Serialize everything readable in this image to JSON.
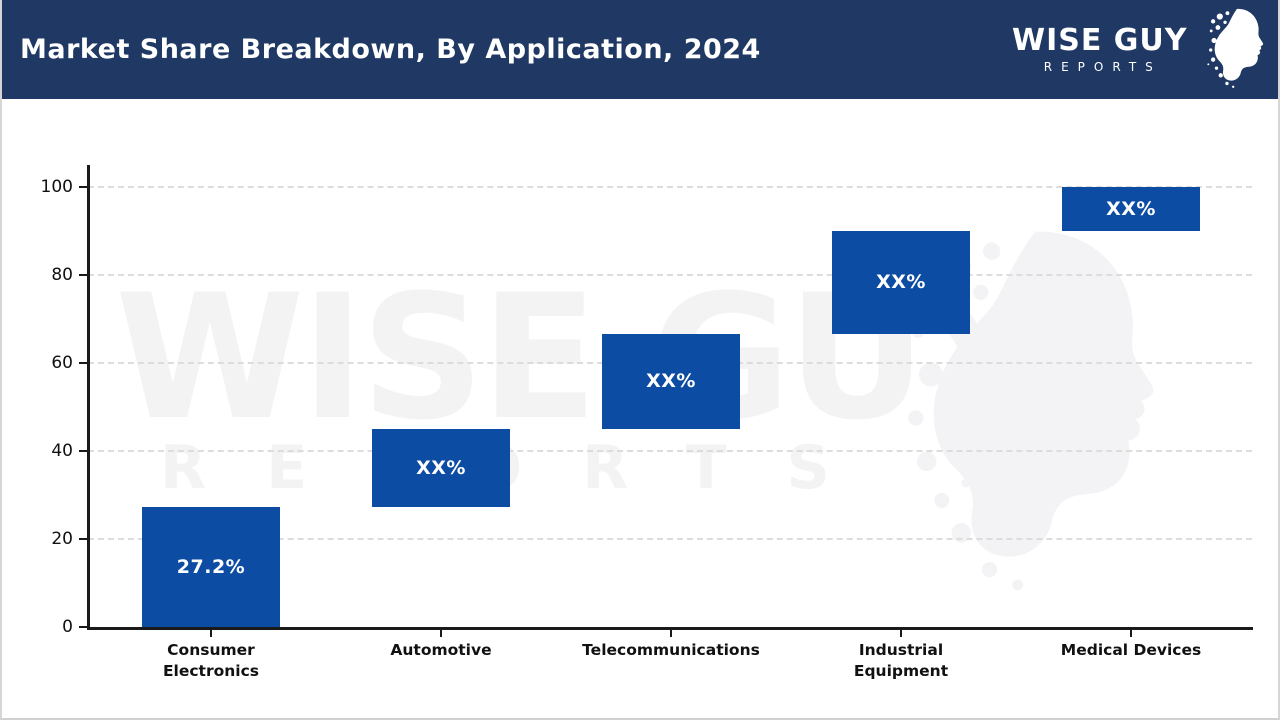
{
  "header": {
    "title": "Market Share Breakdown, By Application, 2024",
    "logo": {
      "line1": "WISE GUY",
      "line2": "REPORTS"
    }
  },
  "watermark": {
    "line1": "WISE GUY",
    "line2": "REPORTS"
  },
  "colors": {
    "header_bg": "#1f3864",
    "bar": "#0c4ca3",
    "bar_label": "#ffffff",
    "grid": "#dcdcdc",
    "axis": "#1a1a1a",
    "watermark": "#f3f3f4",
    "title_text": "#ffffff"
  },
  "chart_data": {
    "type": "bar",
    "subtype": "waterfall",
    "title": "Market Share Breakdown, By Application, 2024",
    "categories": [
      "Consumer\nElectronics",
      "Automotive",
      "Telecommunications",
      "Industrial\nEquipment",
      "Medical Devices"
    ],
    "segments": [
      {
        "category": "Consumer Electronics",
        "start": 0,
        "end": 27.2,
        "label": "27.2%"
      },
      {
        "category": "Automotive",
        "start": 27.2,
        "end": 45.0,
        "label": "XX%"
      },
      {
        "category": "Telecommunications",
        "start": 45.0,
        "end": 66.6,
        "label": "XX%"
      },
      {
        "category": "Industrial Equipment",
        "start": 66.6,
        "end": 90.0,
        "label": "XX%"
      },
      {
        "category": "Medical Devices",
        "start": 90.0,
        "end": 100.0,
        "label": "XX%"
      }
    ],
    "yticks": [
      0,
      20,
      40,
      60,
      80,
      100
    ],
    "ylim": [
      0,
      105
    ],
    "xlabel": "",
    "ylabel": "",
    "grid": "horizontal-dashed",
    "legend": "none"
  }
}
